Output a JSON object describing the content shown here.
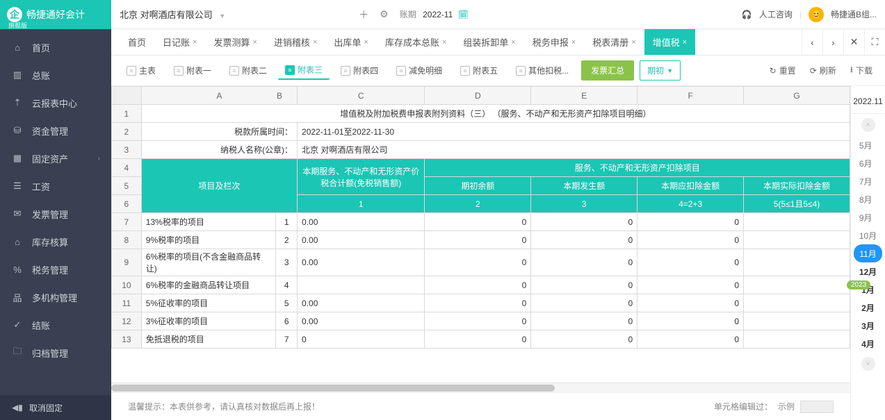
{
  "brand": {
    "name": "畅捷通好会计",
    "edition": "旗舰版"
  },
  "topbar": {
    "company": "北京 对啊酒店有限公司",
    "period_label": "账期",
    "period_value": "2022-11",
    "consult": "人工咨询",
    "user": "畅捷通B组..."
  },
  "sidebar": [
    {
      "icon": "⌂",
      "label": "首页"
    },
    {
      "icon": "▥",
      "label": "总账"
    },
    {
      "icon": "⇡",
      "label": "云报表中心"
    },
    {
      "icon": "⛁",
      "label": "资金管理"
    },
    {
      "icon": "▦",
      "label": "固定资产",
      "chev": true
    },
    {
      "icon": "☰",
      "label": "工资"
    },
    {
      "icon": "✉",
      "label": "发票管理"
    },
    {
      "icon": "⌂",
      "label": "库存核算"
    },
    {
      "icon": "%",
      "label": "税务管理"
    },
    {
      "icon": "品",
      "label": "多机构管理"
    },
    {
      "icon": "✓",
      "label": "结账"
    },
    {
      "icon": "🗀",
      "label": "归档管理"
    }
  ],
  "sidebar_footer": "取消固定",
  "tabs": [
    {
      "label": "首页",
      "closable": false
    },
    {
      "label": "日记账",
      "closable": true
    },
    {
      "label": "发票测算",
      "closable": true
    },
    {
      "label": "进销稽核",
      "closable": true
    },
    {
      "label": "出库单",
      "closable": true
    },
    {
      "label": "库存成本总账",
      "closable": true
    },
    {
      "label": "组装拆卸单",
      "closable": true
    },
    {
      "label": "税务申报",
      "closable": true
    },
    {
      "label": "税表清册",
      "closable": true
    },
    {
      "label": "增值税",
      "closable": true,
      "active": true
    }
  ],
  "subtabs": [
    {
      "label": "主表"
    },
    {
      "label": "附表一"
    },
    {
      "label": "附表二"
    },
    {
      "label": "附表三",
      "active": true
    },
    {
      "label": "附表四"
    },
    {
      "label": "减免明细"
    },
    {
      "label": "附表五"
    },
    {
      "label": "其他扣税..."
    }
  ],
  "toolbar": {
    "invoice_summary": "发票汇总",
    "period_init": "期初",
    "reset": "重置",
    "refresh": "刷新",
    "download": "下载"
  },
  "columns": [
    "A",
    "B",
    "C",
    "D",
    "E",
    "F",
    "G"
  ],
  "sheet": {
    "title": "增值税及附加税费申报表附列资料（三）  （服务、不动产和无形资产扣除项目明细）",
    "tax_period_label": "税款所属时间：",
    "tax_period_value": "2022-11-01至2022-11-30",
    "taxpayer_label": "纳税人名称(公章)：",
    "taxpayer_value": "北京 对啊酒店有限公司",
    "hdr_item": "项目及栏次",
    "hdr_price": "本期服务、不动产和无形资产价税合计额(免税销售额)",
    "hdr_deduct": "服务、不动产和无形资产扣除项目",
    "hdr_begin": "期初余额",
    "hdr_occur": "本期发生额",
    "hdr_should": "本期应扣除金额",
    "hdr_actual": "本期实际扣除金额",
    "col1": "1",
    "col2": "2",
    "col3": "3",
    "col4": "4=2+3",
    "col5": "5(5≤1且5≤4)",
    "rows": [
      {
        "n": "7",
        "name": "13%税率的项目",
        "idx": "1",
        "c": "0.00",
        "d": "0",
        "e": "0",
        "f": "0"
      },
      {
        "n": "8",
        "name": "9%税率的项目",
        "idx": "2",
        "c": "0.00",
        "d": "0",
        "e": "0",
        "f": "0"
      },
      {
        "n": "9",
        "name": "6%税率的项目(不含金融商品转让)",
        "idx": "3",
        "c": "0.00",
        "d": "0",
        "e": "0",
        "f": "0"
      },
      {
        "n": "10",
        "name": "6%税率的金融商品转让项目",
        "idx": "4",
        "c": "",
        "d": "0",
        "e": "0",
        "f": "0"
      },
      {
        "n": "11",
        "name": "5%征收率的项目",
        "idx": "5",
        "c": "0.00",
        "d": "0",
        "e": "0",
        "f": "0"
      },
      {
        "n": "12",
        "name": "3%征收率的项目",
        "idx": "6",
        "c": "0.00",
        "d": "0",
        "e": "0",
        "f": "0"
      },
      {
        "n": "13",
        "name": "免抵退税的项目",
        "idx": "7",
        "c": "0",
        "d": "0",
        "e": "0",
        "f": "0"
      }
    ]
  },
  "footer": {
    "note": "温馨提示：本表供参考，请认真核对数据后再上报！",
    "cell_edited": "单元格编辑过：",
    "example": "示例"
  },
  "rail": {
    "period": "2022.11",
    "months_top": [
      "5月",
      "6月",
      "7月",
      "8月",
      "9月",
      "10月"
    ],
    "active": "11月",
    "after_active": "12月",
    "year_badge": "2023",
    "months_bottom": [
      "1月",
      "2月",
      "3月",
      "4月"
    ]
  }
}
